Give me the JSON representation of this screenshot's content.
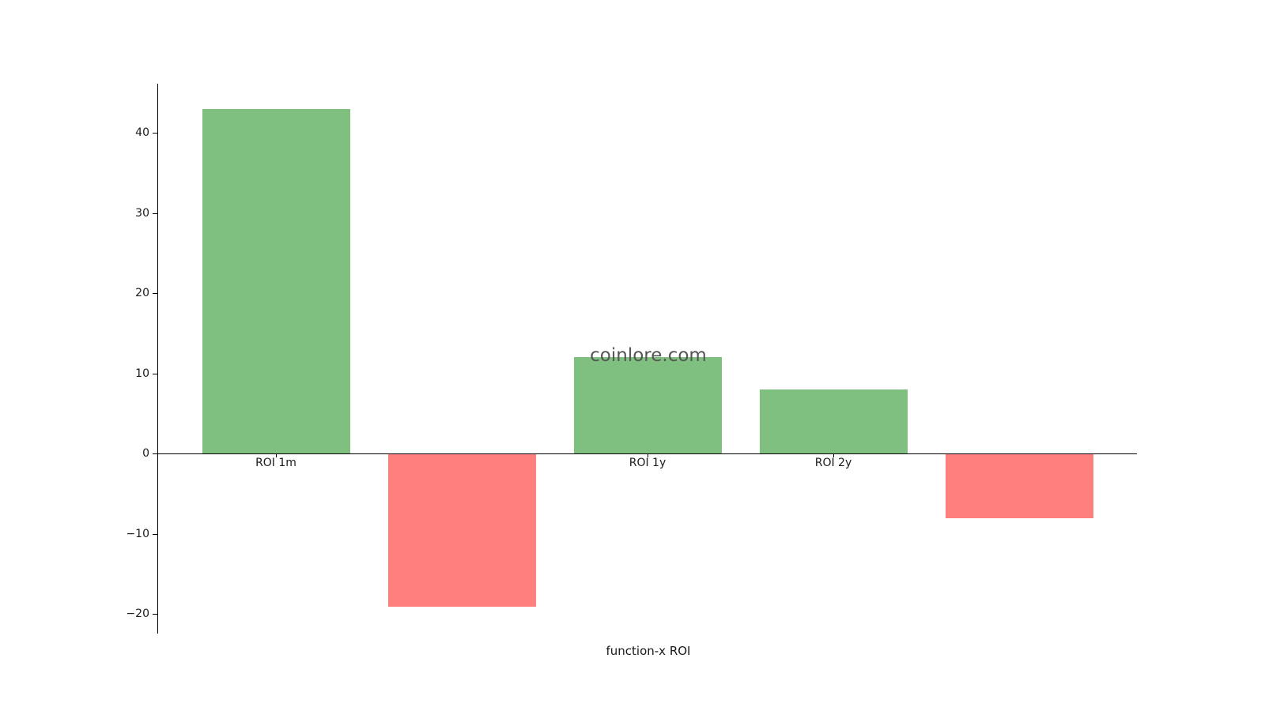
{
  "watermark": {
    "text": "coinlore.com",
    "color": "#555555"
  },
  "chart_data": {
    "type": "bar",
    "title": "",
    "xlabel": "function-x ROI",
    "ylabel": "",
    "categories": [
      "ROI 1m",
      null,
      "ROI 1y",
      "ROI 2y",
      null
    ],
    "values": [
      43,
      -19,
      12,
      8,
      -8
    ],
    "bar_colors": {
      "positive": "#7fbf7f",
      "negative": "#ff7f7f"
    },
    "y_tick_values": [
      40,
      30,
      20,
      10,
      0,
      -10,
      -20
    ],
    "y_tick_labels": [
      "40",
      "30",
      "20",
      "10",
      "0",
      "−10",
      "−20"
    ],
    "ylim": [
      -22.5,
      46.1
    ],
    "grid": false,
    "legend": null,
    "axis_color": "#000000",
    "text_color": "#1a1a1a"
  }
}
